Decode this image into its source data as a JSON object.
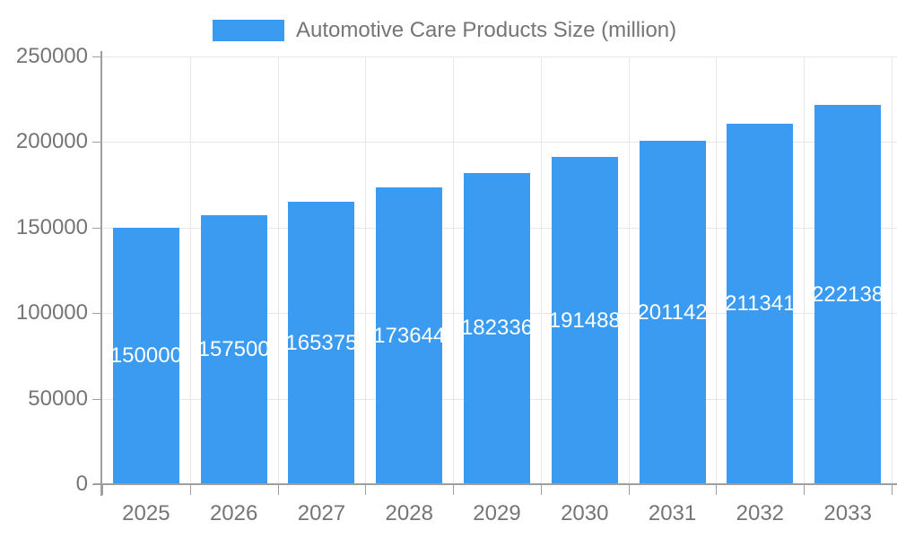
{
  "legend": {
    "label": "Automotive Care Products Size (million)"
  },
  "colors": {
    "bar": "#3b9bf0",
    "axis": "#9e9e9e",
    "grid": "#e6e6e6",
    "tick_label": "#757575",
    "bar_label": "#ffffff"
  },
  "chart_data": {
    "type": "bar",
    "title": "Automotive Care Products Size (million)",
    "categories": [
      "2025",
      "2026",
      "2027",
      "2028",
      "2029",
      "2030",
      "2031",
      "2032",
      "2033"
    ],
    "values": [
      150000,
      157500,
      165375,
      173644,
      182336,
      191488,
      201142,
      211341,
      222138
    ],
    "xlabel": "",
    "ylabel": "",
    "ylim": [
      0,
      250000
    ],
    "yticks": [
      0,
      50000,
      100000,
      150000,
      200000,
      250000
    ],
    "grid": true,
    "legend_position": "top",
    "bar_value_labels": "inside-center"
  }
}
